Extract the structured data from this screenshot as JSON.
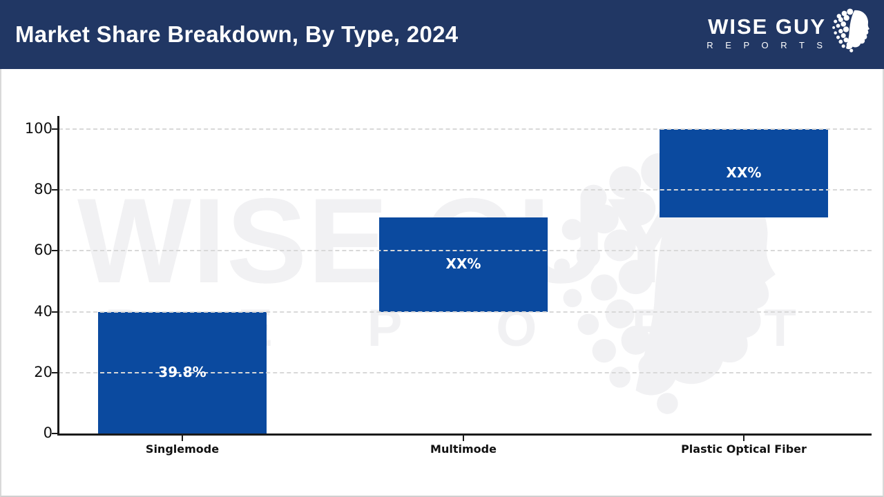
{
  "header": {
    "title": "Market Share Breakdown, By Type, 2024",
    "logo": {
      "line1": "WISE GUY",
      "line2": "R E P O R T S"
    }
  },
  "watermark": {
    "line1": "WISE GUY",
    "line2": "R E P O R T S"
  },
  "chart_data": {
    "type": "bar",
    "variant": "floating-segment-breakdown",
    "title": "Market Share Breakdown, By Type, 2024",
    "categories": [
      "Singlemode",
      "Multimode",
      "Plastic Optical Fiber"
    ],
    "segments": [
      {
        "category": "Singlemode",
        "from": 0,
        "to": 39.8,
        "label": "39.8%"
      },
      {
        "category": "Multimode",
        "from": 40,
        "to": 71,
        "label": "XX%"
      },
      {
        "category": "Plastic Optical Fiber",
        "from": 71,
        "to": 100,
        "label": "XX%"
      }
    ],
    "ylim": [
      0,
      100
    ],
    "yticks": [
      0,
      20,
      40,
      60,
      80,
      100
    ],
    "xlabel": "",
    "ylabel": "",
    "legend": "none",
    "grid": "dashed-horizontal",
    "bar_color": "#0b4a9f",
    "bar_label_color": "#ffffff"
  },
  "colors": {
    "header_bg": "#213764",
    "axis": "#1a1a1a",
    "gridline": "#d8d8d8",
    "watermark": "#f1f1f3",
    "frame": "#d9d9d9"
  }
}
